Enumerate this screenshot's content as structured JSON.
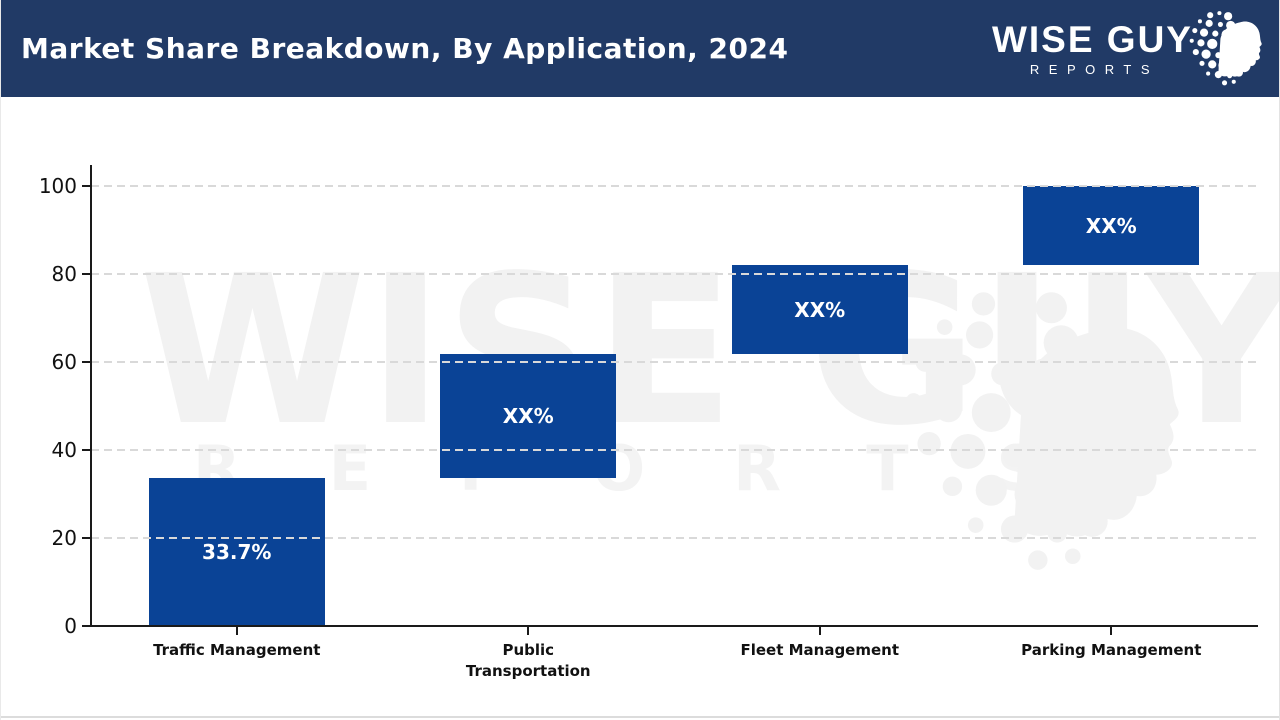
{
  "header": {
    "title": "Market Share Breakdown, By Application, 2024",
    "logo": {
      "line1": "WISE GUY",
      "line2": "REPORTS"
    }
  },
  "watermark": {
    "line1": "WISE GUY",
    "line2": "REPORTS"
  },
  "colors": {
    "header_bg": "#213a66",
    "bar": "#0a4396",
    "grid": "#d9d9d9",
    "axis": "#1a1a1a",
    "bar_label_text": "#ffffff",
    "watermark": "#f2f2f2"
  },
  "chart_data": {
    "type": "bar",
    "subtype": "waterfall-floating-segments",
    "title": "Market Share Breakdown, By Application, 2024",
    "xlabel": "",
    "ylabel": "",
    "ylim": [
      0,
      100
    ],
    "yticks": [
      0,
      20,
      40,
      60,
      80,
      100
    ],
    "grid": "horizontal-dashed-over-bars",
    "legend": "none",
    "bar_color": "#0a4396",
    "categories": [
      "Traffic Management",
      "Public Transportation",
      "Fleet Management",
      "Parking Management"
    ],
    "category_lines": [
      [
        "Traffic Management"
      ],
      [
        "Public",
        "Transportation"
      ],
      [
        "Fleet Management"
      ],
      [
        "Parking Management"
      ]
    ],
    "segments": [
      {
        "category": "Traffic Management",
        "start": 0,
        "end": 33.7,
        "label": "33.7%"
      },
      {
        "category": "Public Transportation",
        "start": 33.7,
        "end": 61.8,
        "label": "XX%"
      },
      {
        "category": "Fleet Management",
        "start": 61.8,
        "end": 82.0,
        "label": "XX%"
      },
      {
        "category": "Parking Management",
        "start": 82.0,
        "end": 100.0,
        "label": "XX%"
      }
    ]
  }
}
